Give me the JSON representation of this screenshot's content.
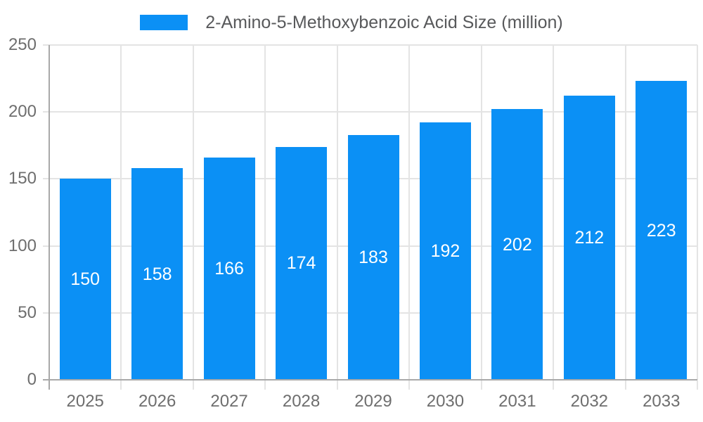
{
  "chart_data": {
    "type": "bar",
    "title": "2-Amino-5-Methoxybenzoic Acid Size (million)",
    "legend": {
      "label": "2-Amino-5-Methoxybenzoic Acid Size (million)",
      "position": "top-center"
    },
    "categories": [
      "2025",
      "2026",
      "2027",
      "2028",
      "2029",
      "2030",
      "2031",
      "2032",
      "2033"
    ],
    "series": [
      {
        "name": "2-Amino-5-Methoxybenzoic Acid Size (million)",
        "values": [
          150,
          158,
          166,
          174,
          183,
          192,
          202,
          212,
          223
        ]
      }
    ],
    "value_labels": {
      "visible": true,
      "position": "inside-center",
      "color": "#ffffff"
    },
    "xlabel": "",
    "ylabel": "",
    "ylim": [
      0,
      250
    ],
    "yticks": [
      0,
      50,
      100,
      150,
      200,
      250
    ],
    "grid": {
      "horizontal": true,
      "vertical": true
    },
    "colors": {
      "bar": "#0b90f5",
      "grid": "#e4e4e4",
      "axis": "#a9a9a9",
      "tick_text": "#6e6e6e",
      "legend_text": "#58595b",
      "background": "#ffffff"
    }
  }
}
